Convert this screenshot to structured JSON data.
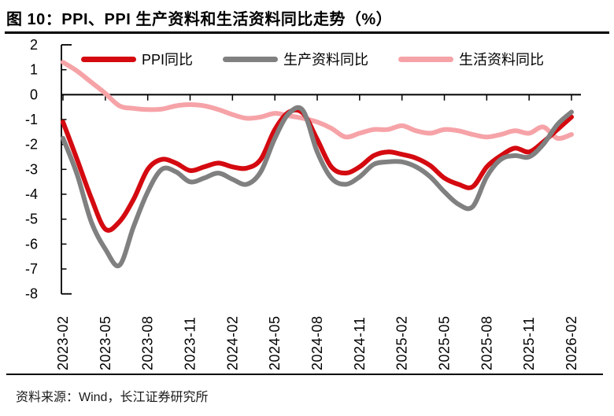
{
  "title": "图 10：PPI、PPI 生产资料和生活资料同比走势（%）",
  "source_note": "资料来源：Wind，长江证券研究所",
  "colors": {
    "ppi": "#d40a10",
    "production_goods": "#808080",
    "consumer_goods": "#f6a3a8",
    "axis": "#000000"
  },
  "chart_data": {
    "type": "line",
    "title": "PPI、PPI生产资料和生活资料同比走势（%）",
    "unit": "%",
    "x": [
      "2023-02",
      "2023-03",
      "2023-04",
      "2023-05",
      "2023-06",
      "2023-07",
      "2023-08",
      "2023-09",
      "2023-10",
      "2023-11",
      "2023-12",
      "2024-01",
      "2024-02",
      "2024-03",
      "2024-04",
      "2024-05",
      "2024-06",
      "2024-07",
      "2024-08",
      "2024-09",
      "2024-10",
      "2024-11",
      "2024-12",
      "2025-01",
      "2025-02",
      "2025-03",
      "2025-04",
      "2025-05",
      "2025-06",
      "2025-07",
      "2025-08",
      "2025-09",
      "2025-10",
      "2025-11",
      "2025-12",
      "2026-01",
      "2026-02"
    ],
    "series": [
      {
        "name": "PPI同比",
        "color": "#d40a10",
        "values": [
          -1.1,
          -2.6,
          -4.15,
          -5.4,
          -5.1,
          -4.2,
          -3.0,
          -2.6,
          -2.75,
          -3.05,
          -2.9,
          -2.75,
          -2.9,
          -2.95,
          -2.6,
          -1.4,
          -0.7,
          -0.75,
          -1.8,
          -2.9,
          -3.15,
          -2.9,
          -2.45,
          -2.3,
          -2.4,
          -2.55,
          -2.85,
          -3.35,
          -3.6,
          -3.7,
          -2.9,
          -2.45,
          -2.15,
          -2.3,
          -1.9,
          -1.4,
          -0.9
        ]
      },
      {
        "name": "生产资料同比",
        "color": "#808080",
        "values": [
          -1.75,
          -3.2,
          -5.1,
          -6.2,
          -6.85,
          -5.3,
          -3.9,
          -3.0,
          -3.1,
          -3.5,
          -3.35,
          -3.15,
          -3.4,
          -3.6,
          -3.1,
          -1.75,
          -0.75,
          -0.65,
          -2.3,
          -3.35,
          -3.6,
          -3.3,
          -2.8,
          -2.7,
          -2.7,
          -2.9,
          -3.3,
          -3.9,
          -4.4,
          -4.5,
          -3.3,
          -2.6,
          -2.45,
          -2.5,
          -2.0,
          -1.2,
          -0.7
        ]
      },
      {
        "name": "生活资料同比",
        "color": "#f6a3a8",
        "values": [
          1.3,
          0.95,
          0.5,
          0.05,
          -0.45,
          -0.55,
          -0.6,
          -0.58,
          -0.45,
          -0.4,
          -0.45,
          -0.6,
          -0.8,
          -0.95,
          -0.9,
          -0.75,
          -0.85,
          -0.95,
          -1.1,
          -1.35,
          -1.7,
          -1.55,
          -1.4,
          -1.4,
          -1.25,
          -1.45,
          -1.55,
          -1.4,
          -1.45,
          -1.6,
          -1.7,
          -1.6,
          -1.45,
          -1.55,
          -1.3,
          -1.75,
          -1.6
        ]
      }
    ],
    "ylim": [
      -8,
      2
    ],
    "yticks": [
      2,
      1,
      0,
      -1,
      -2,
      -3,
      -4,
      -5,
      -6,
      -7,
      -8
    ],
    "xtick_labels": [
      "2023-02",
      "2023-05",
      "2023-08",
      "2023-11",
      "2024-02",
      "2024-05",
      "2024-08",
      "2024-11",
      "2025-02",
      "2025-05",
      "2025-08",
      "2025-11",
      "2026-02"
    ],
    "grid": false,
    "legend_position": "top",
    "smoothed_lines": true,
    "category_axis_at_zero": true
  }
}
